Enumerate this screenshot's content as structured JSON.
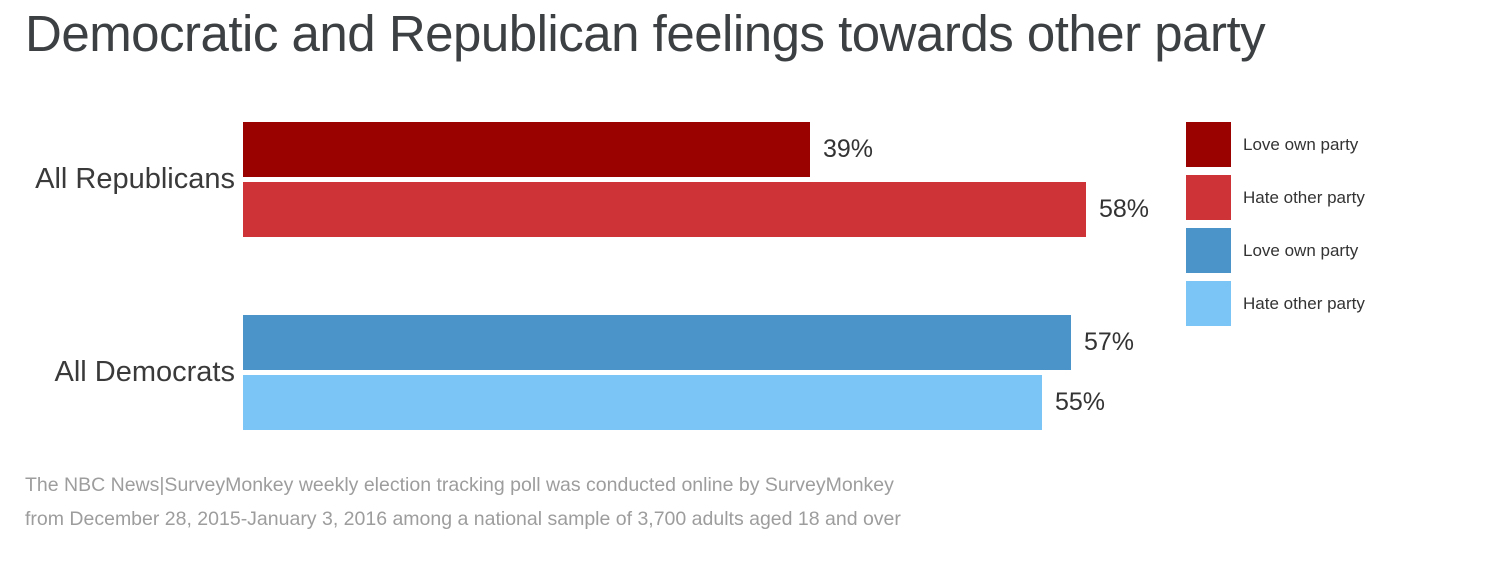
{
  "title": "Democratic and Republican feelings towards other party",
  "chart_data": {
    "type": "bar",
    "orientation": "horizontal",
    "title": "Democratic and Republican feelings towards other party",
    "xlim": [
      0,
      100
    ],
    "grid": false,
    "legend_position": "right",
    "groups": [
      {
        "label": "All Republicans",
        "bars": [
          {
            "series": "Love own party",
            "value": 39,
            "display": "39%",
            "color": "#9a0200"
          },
          {
            "series": "Hate other party",
            "value": 58,
            "display": "58%",
            "color": "#ce3437"
          }
        ]
      },
      {
        "label": "All Democrats",
        "bars": [
          {
            "series": "Love own party",
            "value": 57,
            "display": "57%",
            "color": "#4a94c9"
          },
          {
            "series": "Hate other party",
            "value": 55,
            "display": "55%",
            "color": "#7ac4f6"
          }
        ]
      }
    ]
  },
  "legend": {
    "items": [
      {
        "label": "Love own party",
        "color": "#9a0200"
      },
      {
        "label": "Hate other party",
        "color": "#ce3437"
      },
      {
        "label": "Love own party",
        "color": "#4a94c9"
      },
      {
        "label": "Hate other party",
        "color": "#7ac4f6"
      }
    ]
  },
  "footer": {
    "line1": "The NBC News|SurveyMonkey weekly election tracking poll was conducted online by SurveyMonkey",
    "line2": "from December 28, 2015-January 3, 2016 among a national sample of 3,700 adults aged 18 and over"
  }
}
